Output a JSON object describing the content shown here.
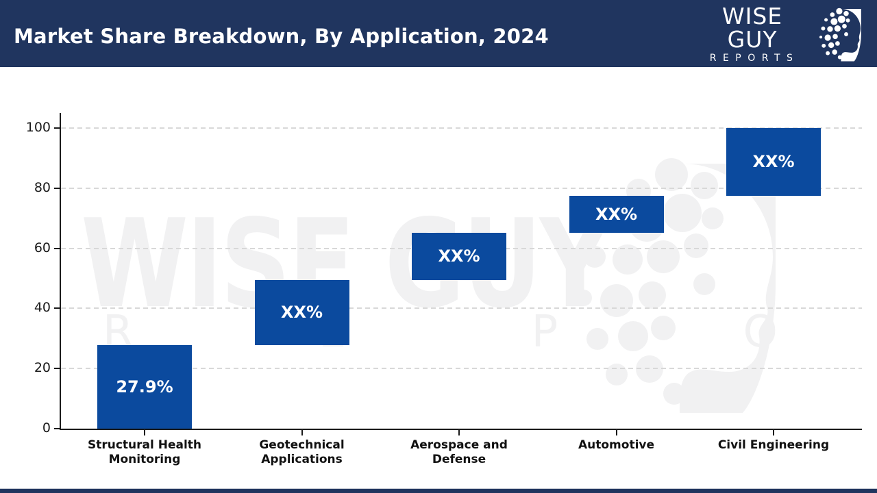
{
  "header": {
    "title": "Market Share Breakdown, By Application, 2024",
    "logo": {
      "line1": "WISE GUY",
      "line2": "REPORTS",
      "icon": "dotted-head-profile"
    }
  },
  "watermark": {
    "line1": "WISE GUY",
    "line2": "R E P O R T S",
    "icon": "dotted-head-profile"
  },
  "colors": {
    "header_bg": "#20355f",
    "bar_fill": "#0b4a9e",
    "bar_label_text": "#ffffff",
    "axis": "#1a1a1a",
    "gridline": "#d8d8d8",
    "watermark": "#f1f1f2",
    "background": "#ffffff"
  },
  "chart_data": {
    "type": "bar",
    "subtype": "waterfall-floating-bars",
    "title": "Market Share Breakdown, By Application, 2024",
    "categories": [
      "Structural Health Monitoring",
      "Geotechnical Applications",
      "Aerospace and Defense",
      "Automotive",
      "Civil Engineering"
    ],
    "categories_lines": [
      [
        "Structural Health",
        "Monitoring"
      ],
      [
        "Geotechnical",
        "Applications"
      ],
      [
        "Aerospace and",
        "Defense"
      ],
      [
        "Automotive"
      ],
      [
        "Civil Engineering"
      ]
    ],
    "series": [
      {
        "name": "Market share (%)",
        "segment_ranges": [
          [
            0,
            27.9
          ],
          [
            27.9,
            49.5
          ],
          [
            49.5,
            65.1
          ],
          [
            65.1,
            77.5
          ],
          [
            77.5,
            100
          ]
        ],
        "segment_values": [
          27.9,
          21.6,
          15.6,
          12.4,
          22.5
        ],
        "segment_labels": [
          "27.9%",
          "XX%",
          "XX%",
          "XX%",
          "XX%"
        ]
      }
    ],
    "xlabel": "",
    "ylabel": "",
    "ylim": [
      0,
      100
    ],
    "yticks": [
      0,
      20,
      40,
      60,
      80,
      100
    ],
    "grid": "horizontal-dashed",
    "legend": "none"
  }
}
